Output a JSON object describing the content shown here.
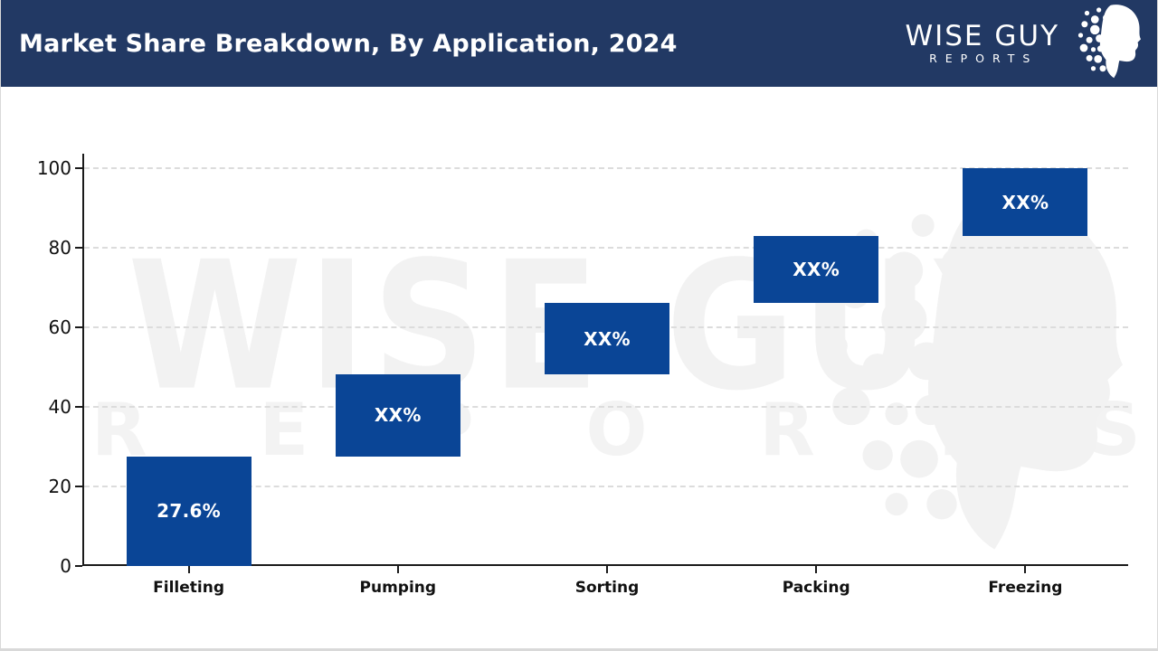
{
  "header": {
    "title": "Market Share Breakdown, By Application, 2024",
    "bg_color": "#223964",
    "logo": {
      "line1": "WISE GUY",
      "line2": "REPORTS"
    }
  },
  "watermark": {
    "line1": "WISE GUY",
    "line2": "REPORTS"
  },
  "chart_data": {
    "type": "bar",
    "subtype": "waterfall-floating-bars",
    "title": "Market Share Breakdown, By Application, 2024",
    "categories": [
      "Filleting",
      "Pumping",
      "Sorting",
      "Packing",
      "Freezing"
    ],
    "bars": [
      {
        "category": "Filleting",
        "start": 0,
        "end": 27.6,
        "label": "27.6%"
      },
      {
        "category": "Pumping",
        "start": 27.6,
        "end": 48.1,
        "label": "XX%"
      },
      {
        "category": "Sorting",
        "start": 48.1,
        "end": 66.1,
        "label": "XX%"
      },
      {
        "category": "Packing",
        "start": 66.1,
        "end": 82.9,
        "label": "XX%"
      },
      {
        "category": "Freezing",
        "start": 82.9,
        "end": 100,
        "label": "XX%"
      }
    ],
    "xlabel": "",
    "ylabel": "",
    "ylim": [
      0,
      100
    ],
    "yticks": [
      0,
      20,
      40,
      60,
      80,
      100
    ],
    "grid": "horizontal-dashed",
    "legend": "none",
    "bar_color": "#0A4596",
    "bar_label_color": "#ffffff",
    "axis_color": "#1a1a1a"
  }
}
